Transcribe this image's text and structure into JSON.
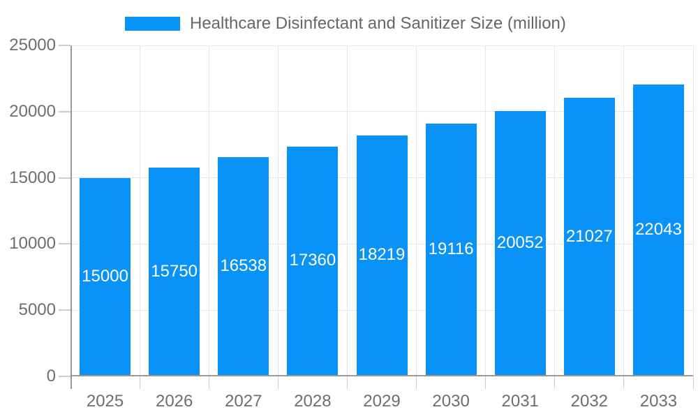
{
  "legend": {
    "label": "Healthcare Disinfectant and Sanitizer Size (million)"
  },
  "chart_data": {
    "type": "bar",
    "title": "Healthcare Disinfectant and Sanitizer Size (million)",
    "categories": [
      "2025",
      "2026",
      "2027",
      "2028",
      "2029",
      "2030",
      "2031",
      "2032",
      "2033"
    ],
    "values": [
      15000,
      15750,
      16538,
      17360,
      18219,
      19116,
      20052,
      21027,
      22043
    ],
    "xlabel": "",
    "ylabel": "",
    "ylim": [
      0,
      25000
    ],
    "yticks": [
      0,
      5000,
      10000,
      15000,
      20000,
      25000
    ],
    "grid": true,
    "legend_position": "top",
    "value_labels": "inside-center"
  },
  "colors": {
    "background": "#ffffff",
    "bar": "#0992f7",
    "grid": "#e6e6e6",
    "axis": "#999999",
    "outside_tick": "#cccccc",
    "tick_text": "#6e6e6e",
    "legend_text": "#666666",
    "value_text": "#ffffff"
  }
}
